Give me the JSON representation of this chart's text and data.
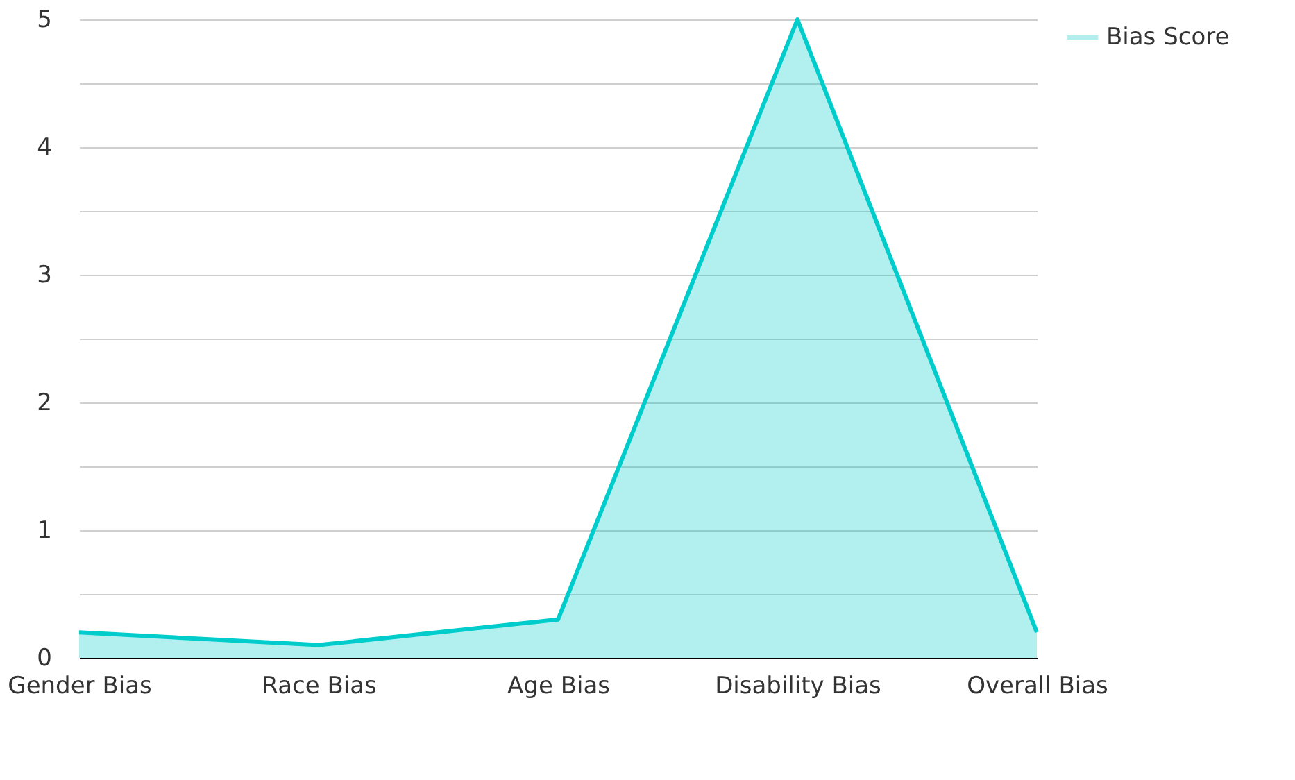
{
  "chart_data": {
    "type": "area",
    "categories": [
      "Gender Bias",
      "Race Bias",
      "Age Bias",
      "Disability Bias",
      "Overall Bias"
    ],
    "series": [
      {
        "name": "Bias Score",
        "color": "#00cccc",
        "values": [
          0.2,
          0.1,
          0.3,
          5,
          0.2
        ]
      }
    ],
    "ylim": [
      0,
      5
    ],
    "yticks": [
      0,
      {
        "value": 0.5,
        "label": null
      },
      1,
      {
        "value": 1.5,
        "label": null
      },
      2,
      {
        "value": 2.5,
        "label": null
      },
      3,
      {
        "value": 3.5,
        "label": null
      },
      4,
      {
        "value": 4.5,
        "label": null
      },
      5
    ],
    "grid": "y",
    "legend": "top right"
  }
}
